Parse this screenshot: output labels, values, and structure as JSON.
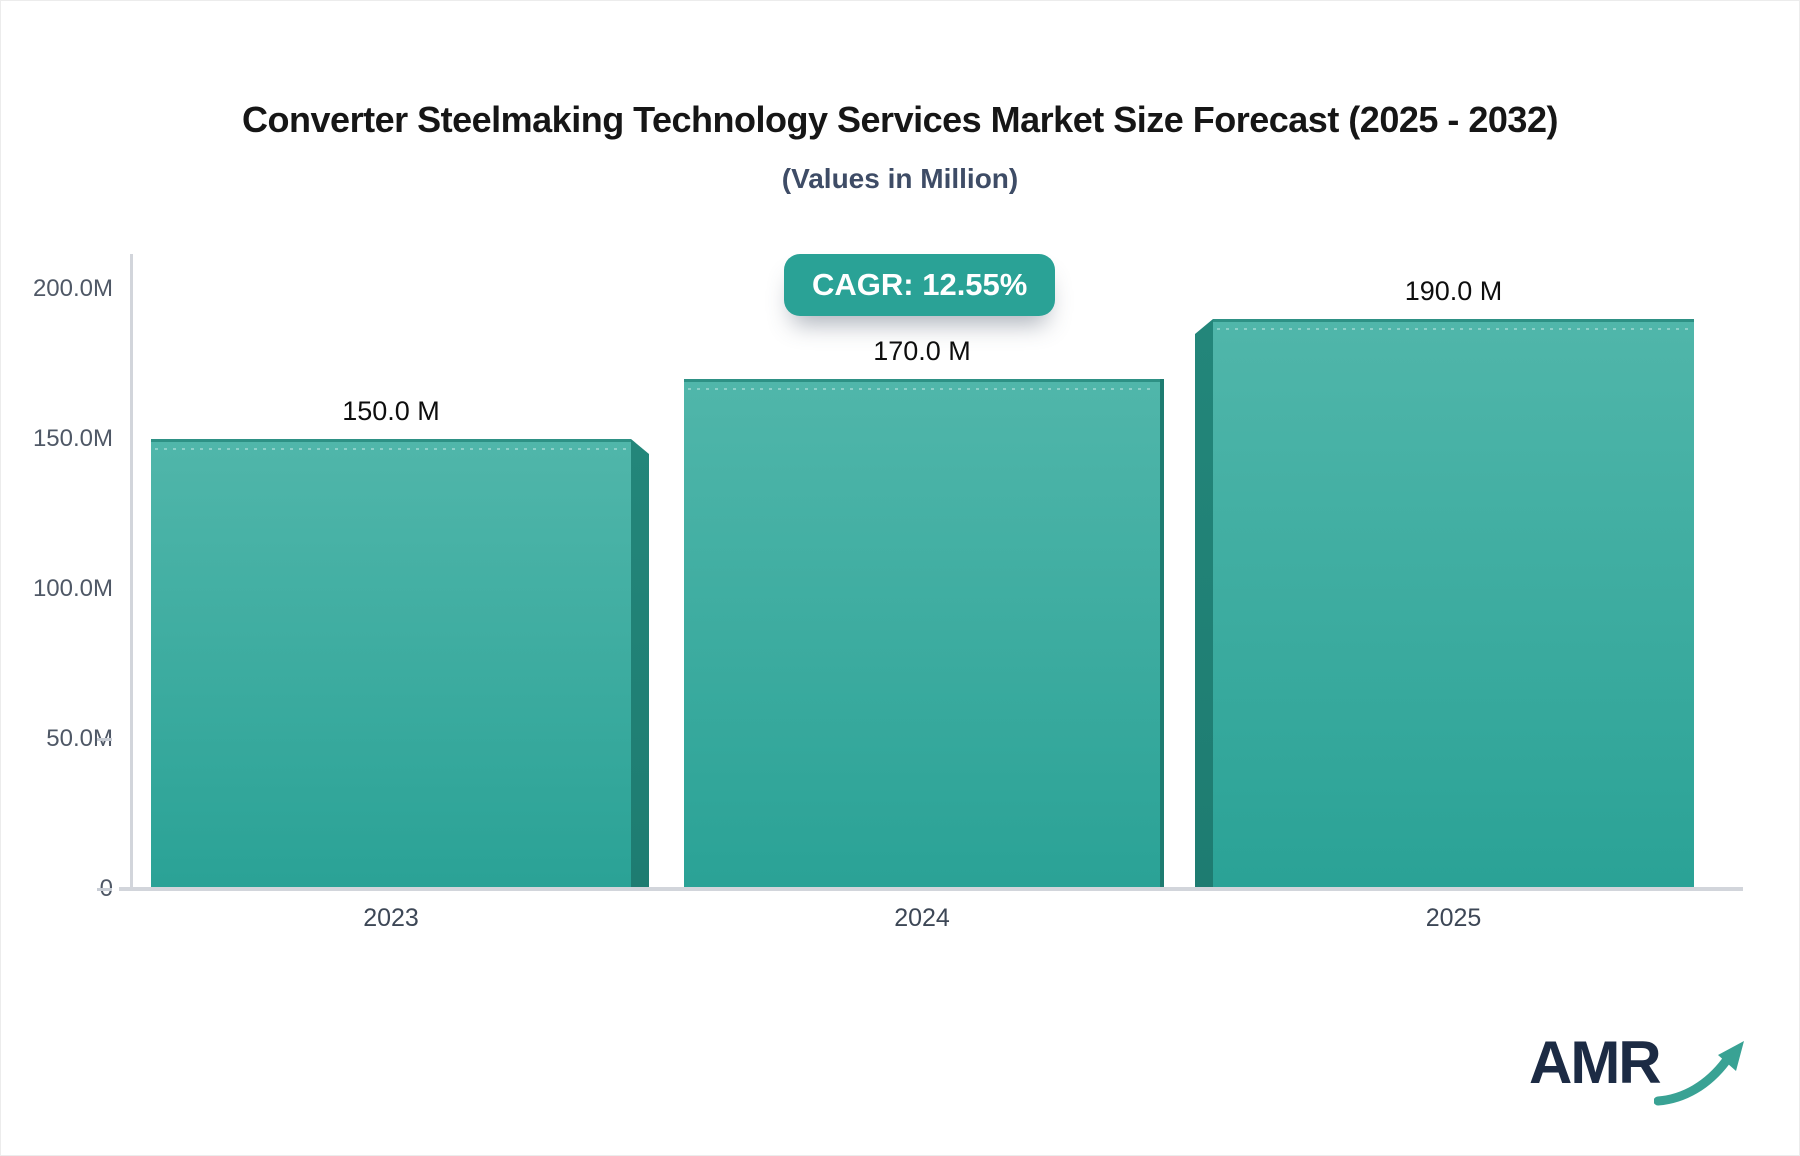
{
  "header": {
    "title": "Converter Steelmaking Technology Services Market Size Forecast (2025 - 2032)",
    "subtitle": "(Values in Million)"
  },
  "badge": {
    "label": "CAGR: 12.55%"
  },
  "chart_data": {
    "type": "bar",
    "title": "Converter Steelmaking Technology Services Market Size Forecast (2025 - 2032)",
    "subtitle": "(Values in Million)",
    "unit": "Million",
    "cagr_percent": 12.55,
    "categories": [
      "2023",
      "2024",
      "2025"
    ],
    "values": [
      150,
      170,
      190
    ],
    "value_labels": [
      "150.0 M",
      "170.0 M",
      "190.0 M"
    ],
    "ylim": [
      0,
      200
    ],
    "ytick_values": [
      200,
      150,
      100,
      50,
      0
    ],
    "ytick_labels": [
      "200.0M",
      "150.0M",
      "100.0M",
      "50.0M",
      "0"
    ],
    "xlabel": "",
    "ylabel": "",
    "grid": false,
    "legend": "none"
  },
  "logo": {
    "text": "AMR"
  },
  "colors": {
    "bar_top": "#50b6aa",
    "bar_bottom": "#2aa296",
    "bar_side": "#1e7c71",
    "bar_edge_top": "#2e9185",
    "axis_color": "#d2d5db",
    "badge_bg": "#2aa296",
    "title_color": "#161616",
    "subtitle_color": "#3e4c66",
    "tick_color": "#4f5866",
    "xlabel_color": "#3d4756",
    "value_color": "#0e0e0e",
    "logo_navy": "#1c2b44",
    "logo_teal": "#39a294"
  }
}
